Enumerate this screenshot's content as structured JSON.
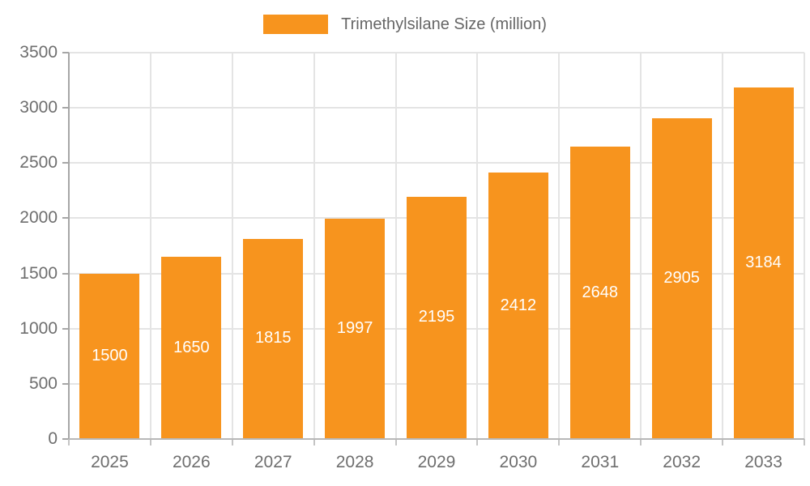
{
  "legend": {
    "label": "Trimethylsilane Size (million)"
  },
  "colors": {
    "bar": "#F7941E",
    "grid": "#E4E4E4",
    "axis_text": "#6E6E6E",
    "legend_text": "#666666",
    "value_label": "#FFFFFF"
  },
  "chart_data": {
    "type": "bar",
    "title": "",
    "xlabel": "",
    "ylabel": "",
    "categories": [
      "2025",
      "2026",
      "2027",
      "2028",
      "2029",
      "2030",
      "2031",
      "2032",
      "2033"
    ],
    "series": [
      {
        "name": "Trimethylsilane Size (million)",
        "values": [
          1500,
          1650,
          1815,
          1997,
          2195,
          2412,
          2648,
          2905,
          3184
        ]
      }
    ],
    "ylim": [
      0,
      3500
    ],
    "ytick_step": 500,
    "ytick_labels": [
      "0",
      "500",
      "1000",
      "1500",
      "2000",
      "2500",
      "3000",
      "3500"
    ],
    "grid": true,
    "legend_position": "top",
    "value_labels_shown": true,
    "value_label_position": "center"
  }
}
